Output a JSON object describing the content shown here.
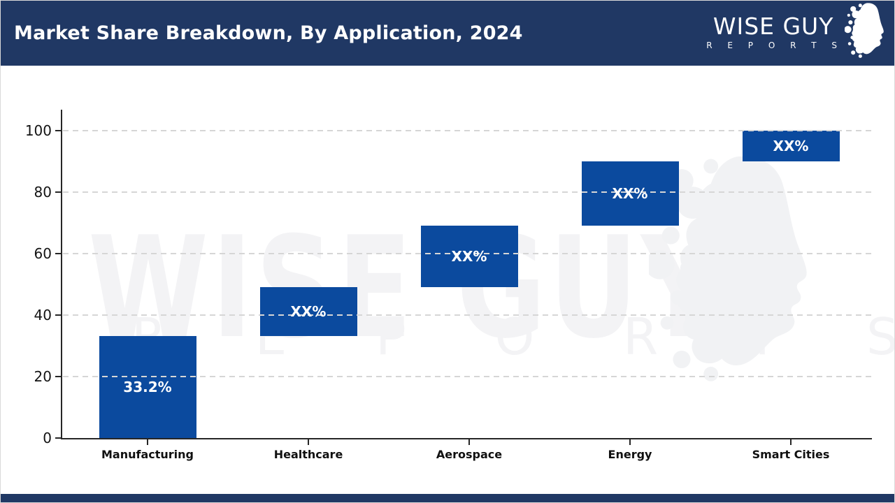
{
  "header": {
    "title": "Market Share Breakdown, By Application, 2024",
    "logo": {
      "line1": "WISE GUY",
      "line2": "R E P O R T S"
    },
    "bg_color": "#203864"
  },
  "watermark": {
    "line1": "WISE GUY",
    "line2": "R E P O R T S"
  },
  "chart_data": {
    "type": "bar",
    "subtype": "waterfall",
    "title": "Market Share Breakdown, By Application, 2024",
    "categories": [
      "Manufacturing",
      "Healthcare",
      "Aerospace",
      "Energy",
      "Smart Cities"
    ],
    "segments": [
      {
        "category": "Manufacturing",
        "start": 0,
        "end": 33.2,
        "label": "33.2%"
      },
      {
        "category": "Healthcare",
        "start": 33.2,
        "end": 49,
        "label": "XX%"
      },
      {
        "category": "Aerospace",
        "start": 49,
        "end": 69,
        "label": "XX%"
      },
      {
        "category": "Energy",
        "start": 69,
        "end": 90,
        "label": "XX%"
      },
      {
        "category": "Smart Cities",
        "start": 90,
        "end": 100,
        "label": "XX%"
      }
    ],
    "xlabel": "",
    "ylabel": "",
    "ylim": [
      0,
      100
    ],
    "yticks": [
      0,
      20,
      40,
      60,
      80,
      100
    ],
    "grid": "horizontal dashed, drawn above bars",
    "legend": "none",
    "bar_color": "#0b4a9e",
    "bar_label_color": "#ffffff",
    "axis_color": "#262626",
    "grid_color": "#d6d6d6"
  }
}
